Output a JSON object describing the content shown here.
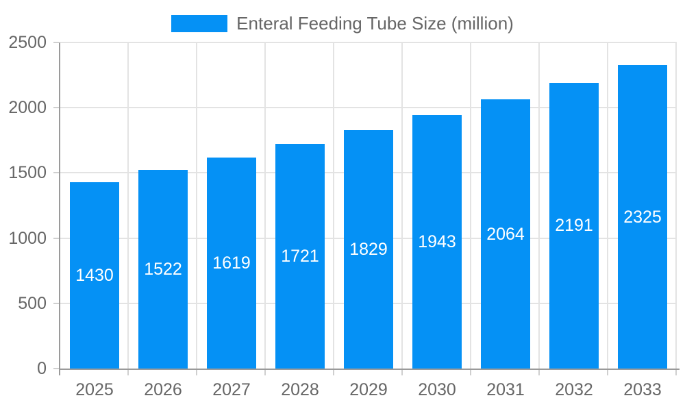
{
  "chart_data": {
    "type": "bar",
    "title": "",
    "legend": {
      "label": "Enteral Feeding Tube Size (million)",
      "position": "top"
    },
    "categories": [
      "2025",
      "2026",
      "2027",
      "2028",
      "2029",
      "2030",
      "2031",
      "2032",
      "2033"
    ],
    "values": [
      1430,
      1522,
      1619,
      1721,
      1829,
      1943,
      2064,
      2191,
      2325
    ],
    "xlabel": "",
    "ylabel": "",
    "ylim": [
      0,
      2500
    ],
    "yticks": [
      0,
      500,
      1000,
      1500,
      2000,
      2500
    ],
    "grid": true,
    "data_labels_inside_bars": true,
    "colors": {
      "bar": "#0591f5",
      "grid": "#e3e3e3",
      "axis": "#9a9a9a",
      "tick_text": "#666666",
      "value_label": "#ffffff",
      "background": "#ffffff"
    }
  }
}
